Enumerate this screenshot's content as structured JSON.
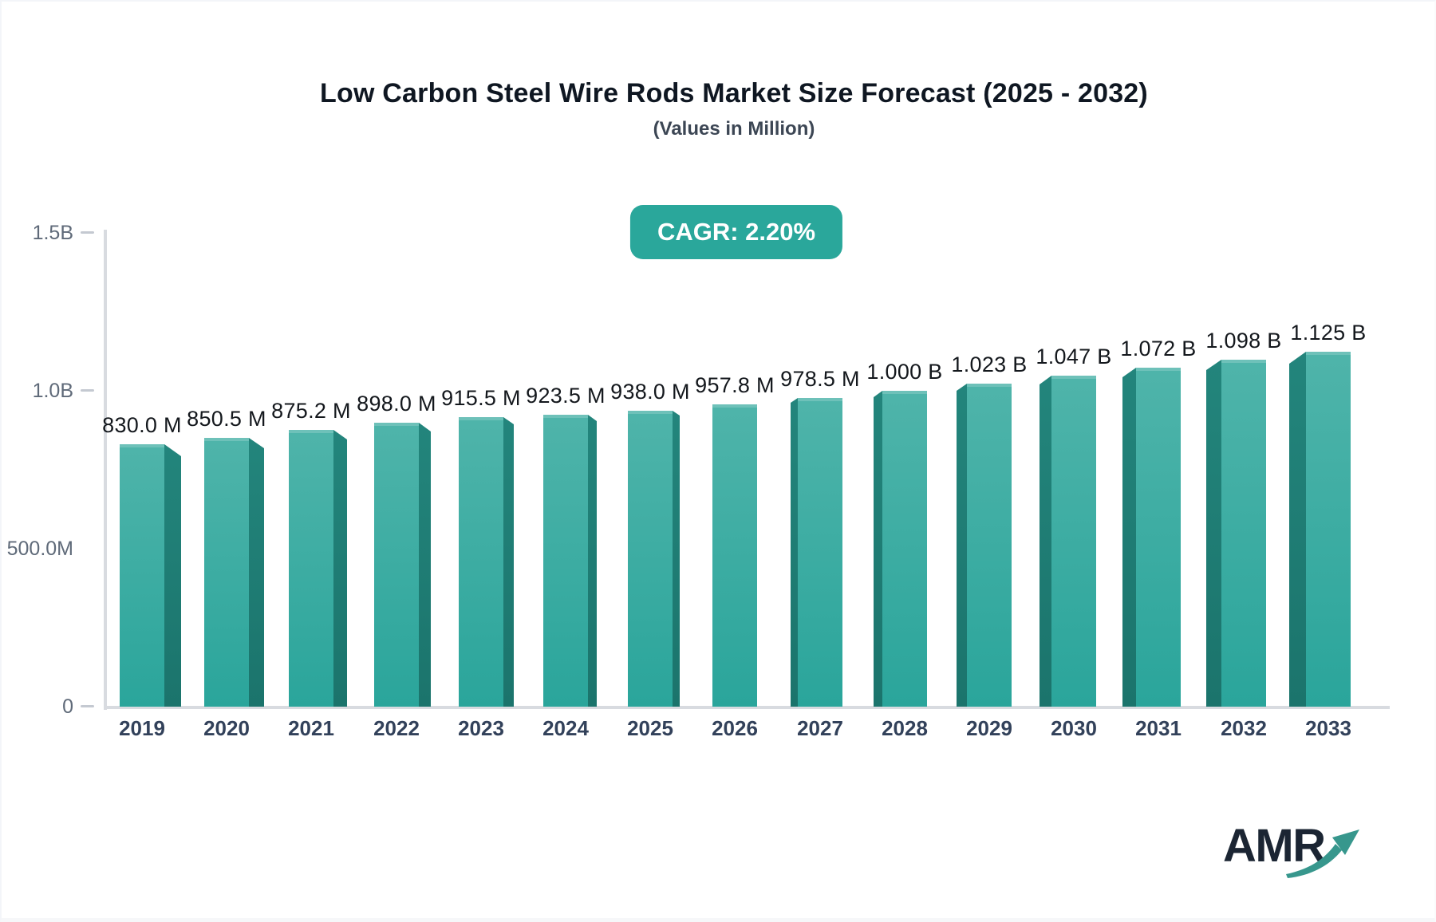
{
  "header": {
    "title": "Low Carbon Steel Wire Rods Market Size Forecast (2025 - 2032)",
    "subtitle": "(Values in Million)",
    "cagr_label": "CAGR: 2.20%"
  },
  "chart_data": {
    "type": "bar",
    "title": "Low Carbon Steel Wire Rods Market Size Forecast (2025 - 2032)",
    "subtitle": "(Values in Million)",
    "xlabel": "",
    "ylabel": "",
    "ylim_billions": [
      0,
      1.5
    ],
    "grid": false,
    "legend": false,
    "categories": [
      "2019",
      "2020",
      "2021",
      "2022",
      "2023",
      "2024",
      "2025",
      "2026",
      "2027",
      "2028",
      "2029",
      "2030",
      "2031",
      "2032",
      "2033"
    ],
    "values_millions": [
      830.0,
      850.5,
      875.2,
      898.0,
      915.5,
      923.5,
      938.0,
      957.8,
      978.5,
      1000,
      1023,
      1047,
      1072,
      1098,
      1125
    ],
    "bar_labels": [
      "830.0 M",
      "850.5 M",
      "875.2 M",
      "898.0 M",
      "915.5 M",
      "923.5 M",
      "938.0 M",
      "957.8 M",
      "978.5 M",
      "1.000 B",
      "1.023 B",
      "1.047 B",
      "1.072 B",
      "1.098 B",
      "1.125 B"
    ],
    "y_ticks": [
      {
        "label": "1.5B",
        "value_billions": 1.5,
        "dash": true
      },
      {
        "label": "1.0B",
        "value_billions": 1.0,
        "dash": true
      },
      {
        "label": "500.0M",
        "value_billions": 0.5,
        "dash": false
      },
      {
        "label": "0",
        "value_billions": 0.0,
        "dash": true
      }
    ],
    "colors": {
      "bar_face_top": "#4fb4aa",
      "bar_face_bottom": "#2aa59b",
      "bar_side_top": "#23857c",
      "bar_side_bottom": "#1b746c",
      "axis": "#d8dbe0"
    }
  },
  "cagr_badge_color": "#2aa79b",
  "branding": {
    "logo_text": "AMR",
    "logo_color": "#1b2533",
    "arrow_color": "#37978d"
  }
}
